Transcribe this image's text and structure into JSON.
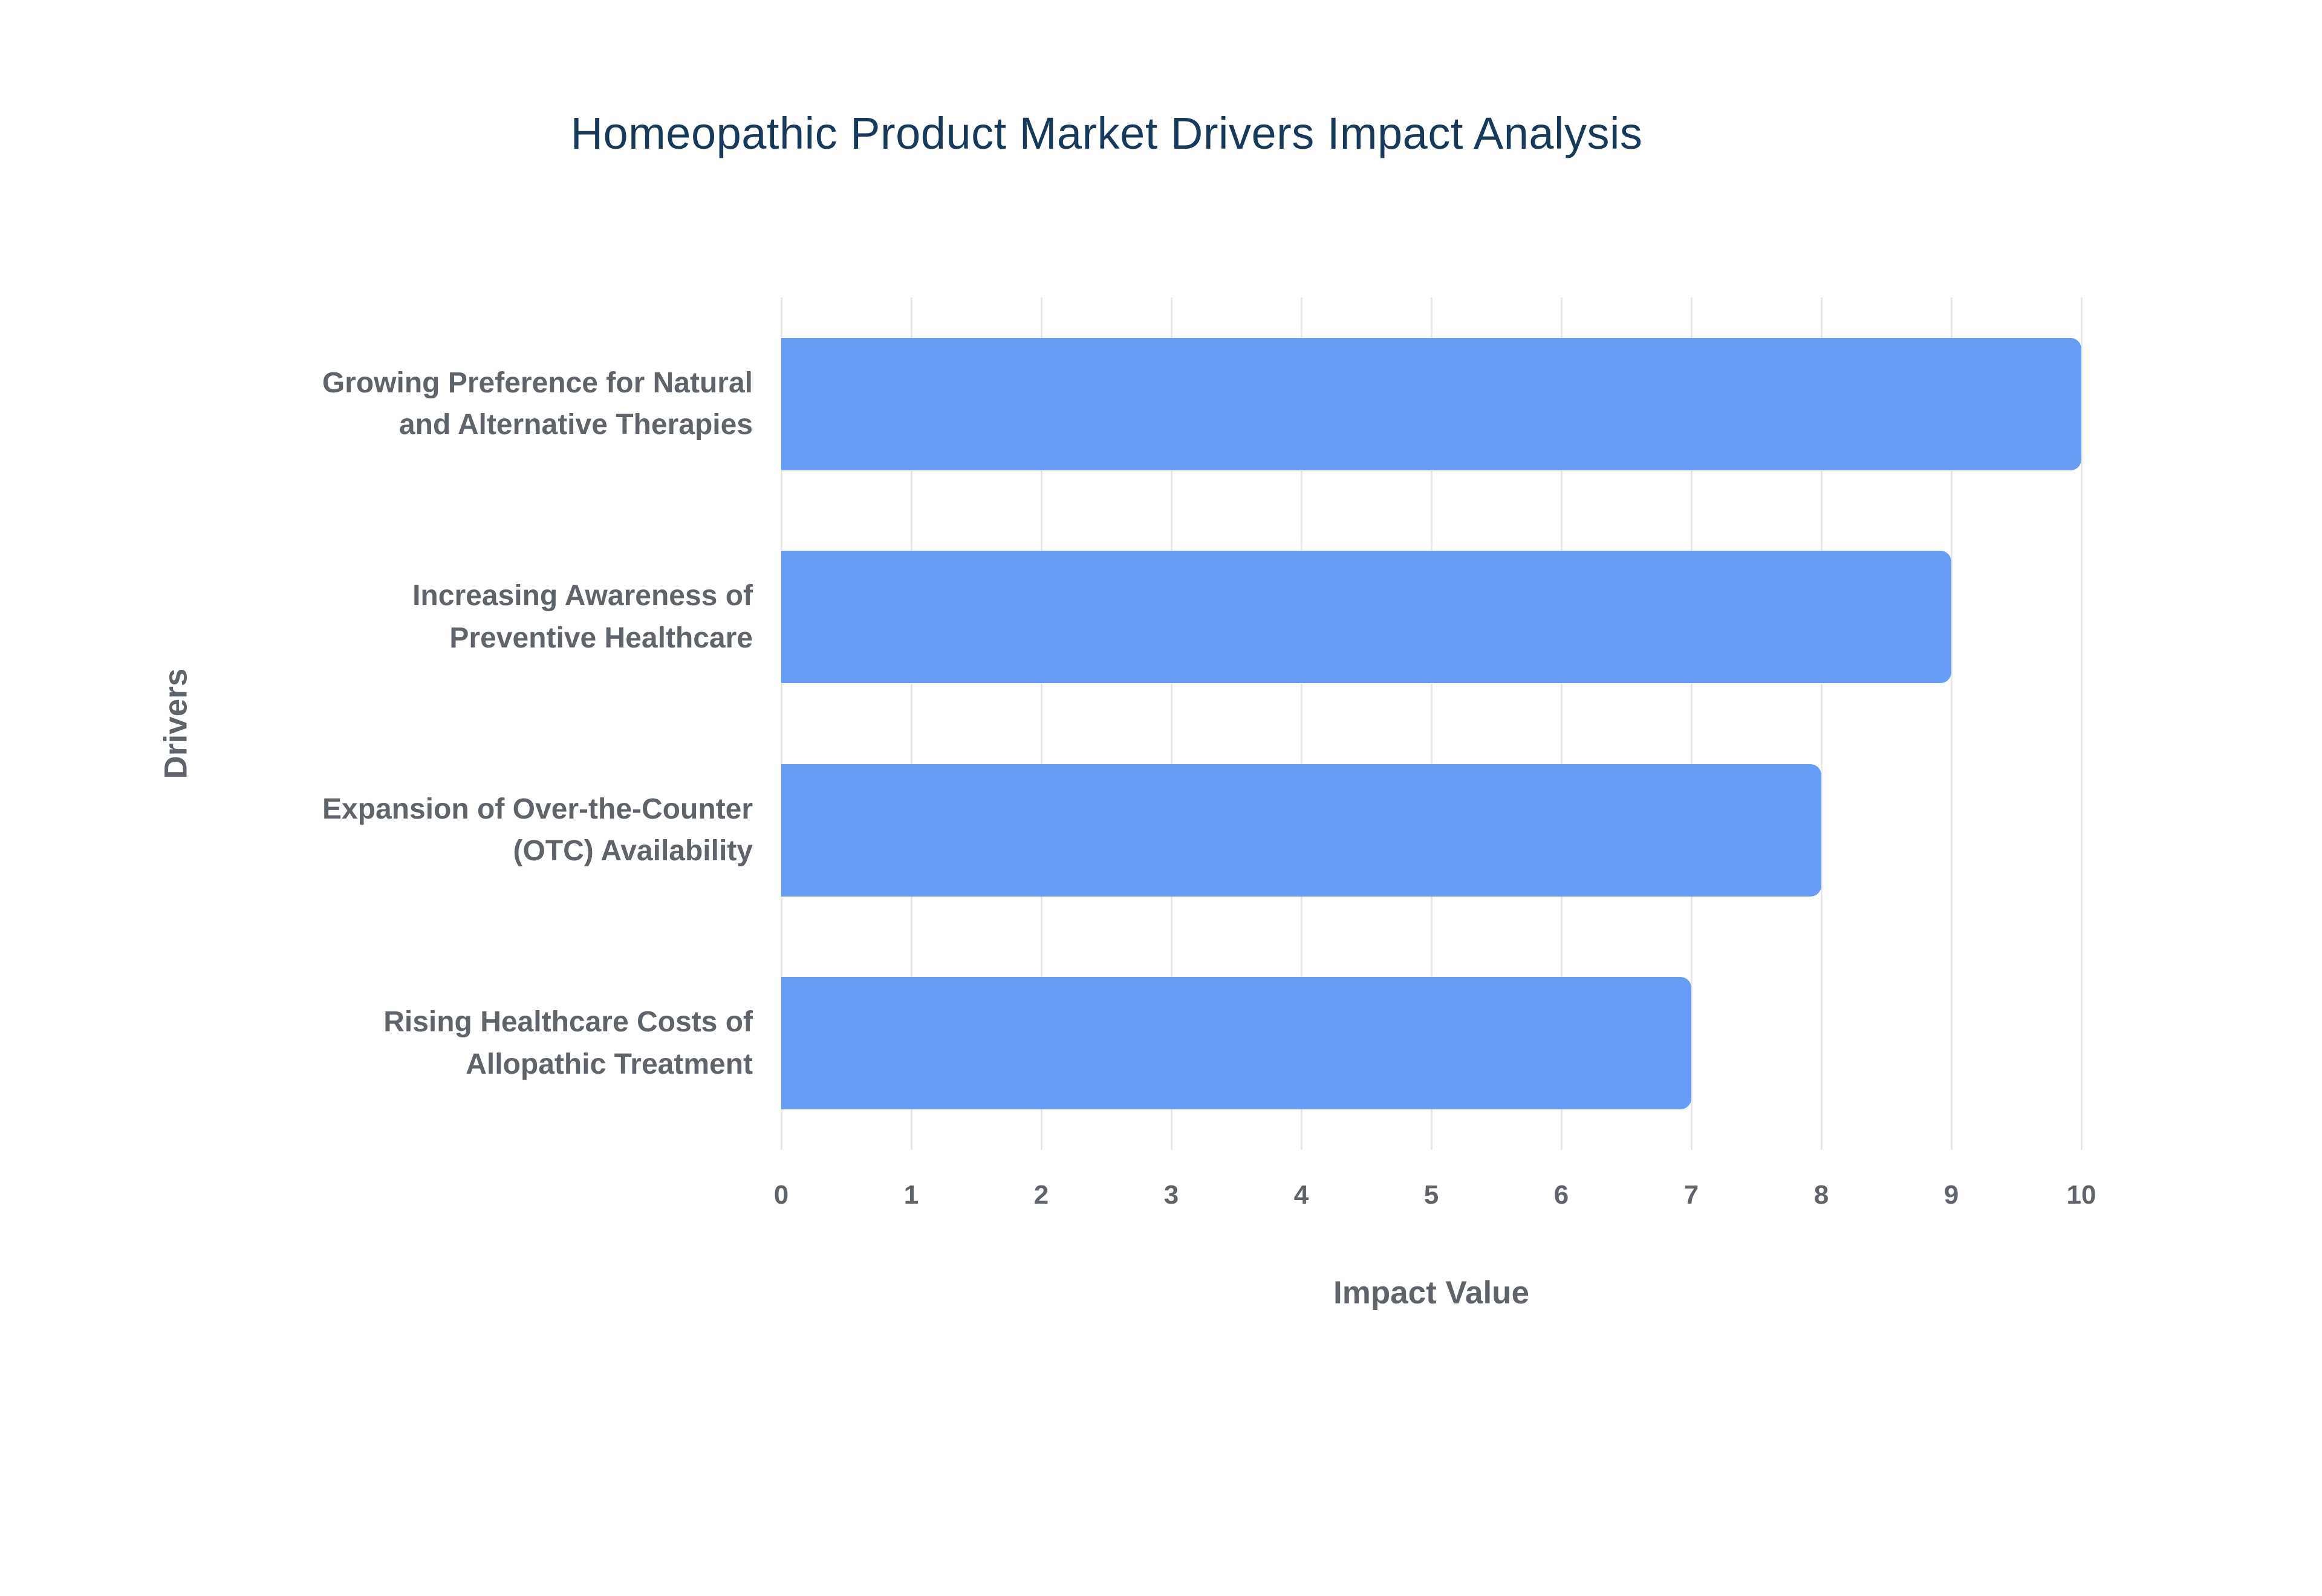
{
  "chart_data": {
    "type": "bar",
    "orientation": "horizontal",
    "title": "Homeopathic Product Market Drivers Impact Analysis",
    "xlabel": "Impact Value",
    "ylabel": "Drivers",
    "categories": [
      "Growing Preference for Natural\nand Alternative Therapies",
      "Increasing Awareness of\nPreventive Healthcare",
      "Expansion of Over-the-Counter\n(OTC) Availability",
      "Rising Healthcare Costs of\nAllopathic Treatment"
    ],
    "values": [
      10,
      9,
      8,
      7
    ],
    "xlim": [
      0,
      10
    ],
    "xticks": [
      0,
      1,
      2,
      3,
      4,
      5,
      6,
      7,
      8,
      9,
      10
    ],
    "grid": true,
    "legend": "none",
    "bar_color": "#669df6",
    "title_color": "#17395c",
    "label_color": "#5f646b",
    "grid_color": "#e9e9e9",
    "background_color": "#ffffff"
  }
}
